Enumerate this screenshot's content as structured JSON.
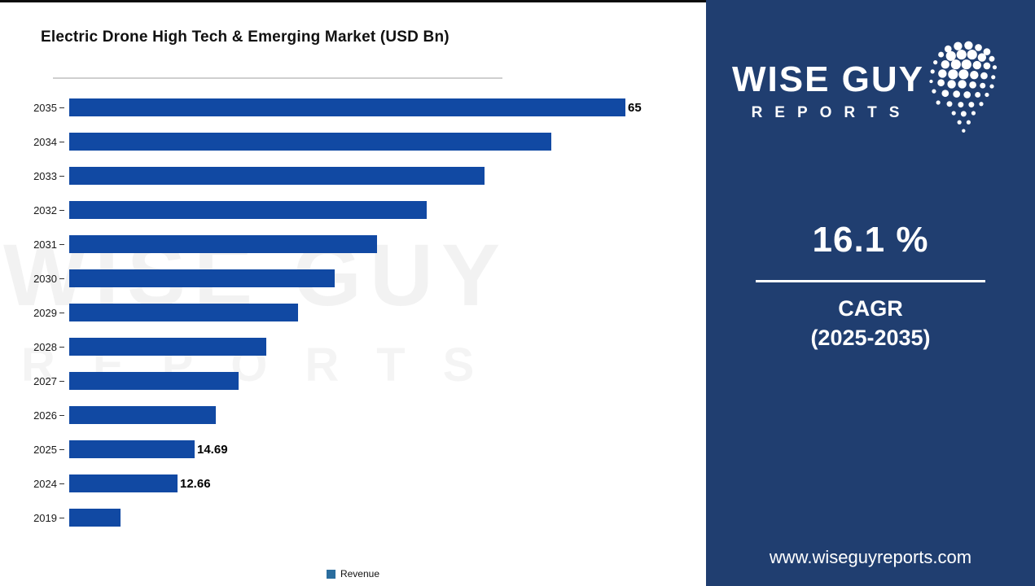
{
  "title": "Electric Drone High Tech & Emerging Market (USD Bn)",
  "watermark": {
    "line1": "WISE GUY",
    "line2": "REPORTS"
  },
  "legend": {
    "label": "Revenue",
    "marker_color": "#2a6d9e"
  },
  "panel": {
    "background_color": "#203e70",
    "logo_line1": "WISE GUY",
    "logo_line2": "REPORTS",
    "cagr_value": "16.1 %",
    "cagr_label_line1": "CAGR",
    "cagr_label_line2": "(2025-2035)",
    "website": "www.wiseguyreports.com"
  },
  "chart_data": {
    "type": "bar",
    "orientation": "horizontal",
    "title": "Electric Drone High Tech & Emerging Market (USD Bn)",
    "xlabel": "",
    "ylabel": "",
    "xlim": [
      0,
      68
    ],
    "grid": false,
    "legend_entries": [
      "Revenue"
    ],
    "legend_position": "bottom-center",
    "bar_color": "#1149a3",
    "categories": [
      "2035",
      "2034",
      "2033",
      "2032",
      "2031",
      "2030",
      "2029",
      "2028",
      "2027",
      "2026",
      "2025",
      "2024",
      "2019"
    ],
    "values": [
      65,
      56.3,
      48.5,
      41.8,
      36.0,
      31.0,
      26.7,
      23.0,
      19.8,
      17.1,
      14.69,
      12.66,
      6.0
    ],
    "rows": [
      {
        "year": "2035",
        "value": 65,
        "label": "65"
      },
      {
        "year": "2034",
        "value": 56.3,
        "label": ""
      },
      {
        "year": "2033",
        "value": 48.5,
        "label": ""
      },
      {
        "year": "2032",
        "value": 41.8,
        "label": ""
      },
      {
        "year": "2031",
        "value": 36.0,
        "label": ""
      },
      {
        "year": "2030",
        "value": 31.0,
        "label": ""
      },
      {
        "year": "2029",
        "value": 26.7,
        "label": ""
      },
      {
        "year": "2028",
        "value": 23.0,
        "label": ""
      },
      {
        "year": "2027",
        "value": 19.8,
        "label": ""
      },
      {
        "year": "2026",
        "value": 17.1,
        "label": ""
      },
      {
        "year": "2025",
        "value": 14.69,
        "label": "14.69"
      },
      {
        "year": "2024",
        "value": 12.66,
        "label": "12.66"
      },
      {
        "year": "2019",
        "value": 6.0,
        "label": ""
      }
    ]
  }
}
